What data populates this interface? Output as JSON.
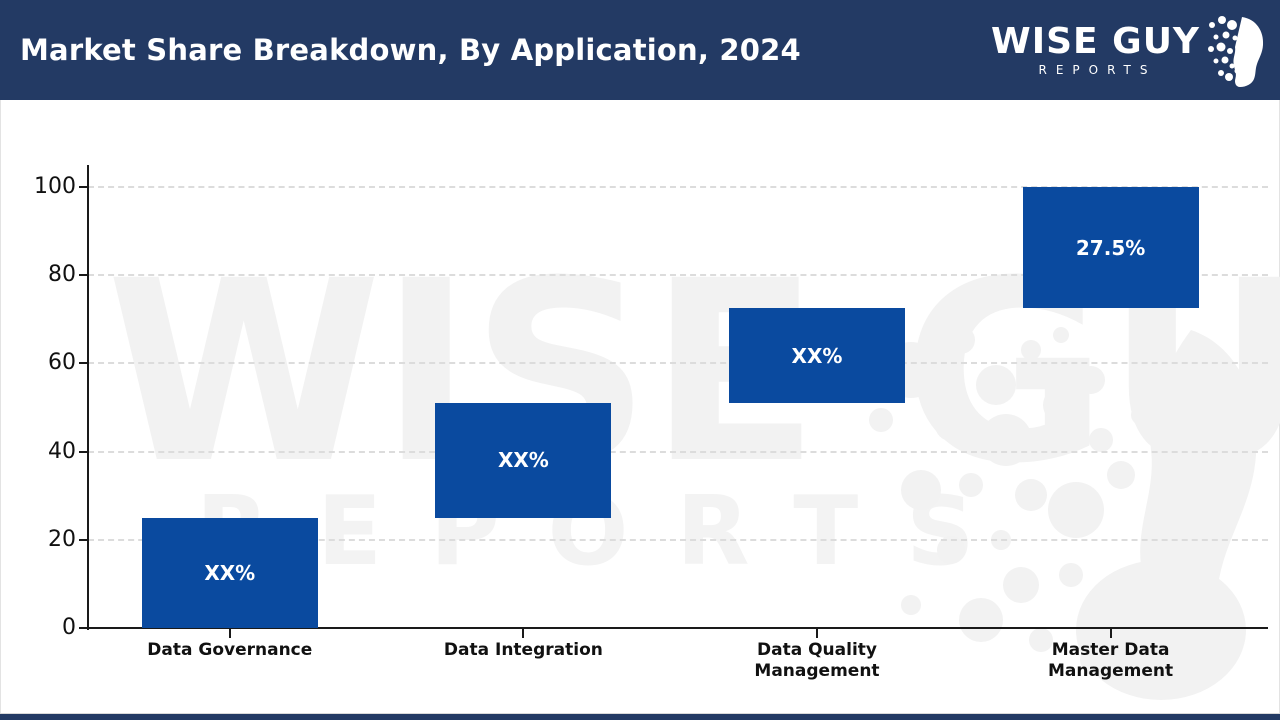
{
  "header": {
    "title": "Market Share Breakdown, By Application, 2024",
    "logo": {
      "name": "WISE GUY",
      "sub": "REPORTS"
    }
  },
  "watermark": {
    "big": "WISE GU",
    "sub": "REPORTS"
  },
  "colors": {
    "header_bg": "#233A64",
    "bar_blue": "#0A4A9F",
    "gridline": "#DCDCDC",
    "axis": "#1a1a1a",
    "watermark_gray": "#F2F2F2"
  },
  "chart_data": {
    "type": "bar",
    "variant": "floating-waterfall",
    "title": "Market Share Breakdown, By Application, 2024",
    "categories": [
      "Data Governance",
      "Data Integration",
      "Data Quality Management",
      "Master Data Management"
    ],
    "category_label_lines": [
      [
        "Data Governance"
      ],
      [
        "Data Integration"
      ],
      [
        "Data Quality",
        "Management"
      ],
      [
        "Master Data",
        "Management"
      ]
    ],
    "segments": [
      {
        "category": "Data Governance",
        "from": 0,
        "to": 25,
        "label": "XX%"
      },
      {
        "category": "Data Integration",
        "from": 25,
        "to": 51,
        "label": "XX%"
      },
      {
        "category": "Data Quality Management",
        "from": 51,
        "to": 72.5,
        "label": "XX%"
      },
      {
        "category": "Master Data Management",
        "from": 72.5,
        "to": 100,
        "label": "27.5%"
      }
    ],
    "ylim": [
      0,
      100
    ],
    "yticks": [
      0,
      20,
      40,
      60,
      80,
      100
    ],
    "xlabel": "",
    "ylabel": "",
    "grid": "horizontal-dashed",
    "legend": "none",
    "bar_color": "#0A4A9F",
    "bar_label_color": "#FFFFFF"
  }
}
